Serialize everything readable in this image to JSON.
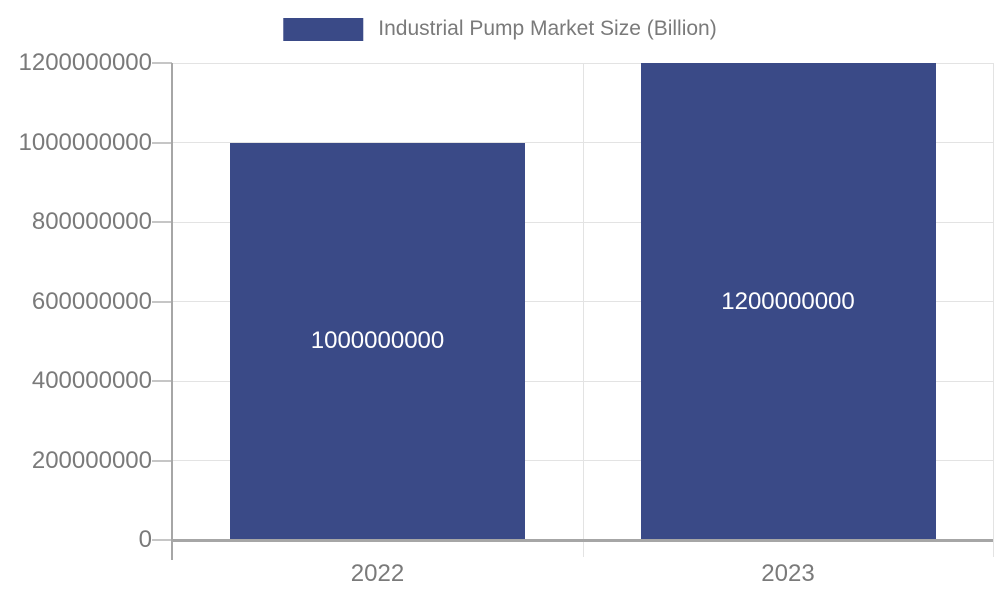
{
  "chart_data": {
    "type": "bar",
    "title": "Industrial Pump Market Size (Billion)",
    "categories": [
      "2022",
      "2023"
    ],
    "series": [
      {
        "name": "Industrial Pump Market Size (Billion)",
        "values": [
          1000000000,
          1200000000
        ]
      }
    ],
    "value_labels": [
      "1000000000",
      "1200000000"
    ],
    "xlabel": "",
    "ylabel": "",
    "ylim": [
      0,
      1200000000
    ],
    "ytick_step": 200000000,
    "ytick_labels": [
      "0",
      "200000000",
      "400000000",
      "600000000",
      "800000000",
      "1000000000",
      "1200000000"
    ],
    "grid": true,
    "legend_position": "top-center",
    "colors": {
      "bar": "#3A4A87",
      "value_label_text": "#ffffff",
      "axis_text": "#7a7a7a",
      "legend_text": "#7a7a7a",
      "grid_line": "#e3e3e3",
      "tick_line": "#c6c6c6",
      "axis_line": "#a6a6a6",
      "background": "#ffffff"
    }
  }
}
